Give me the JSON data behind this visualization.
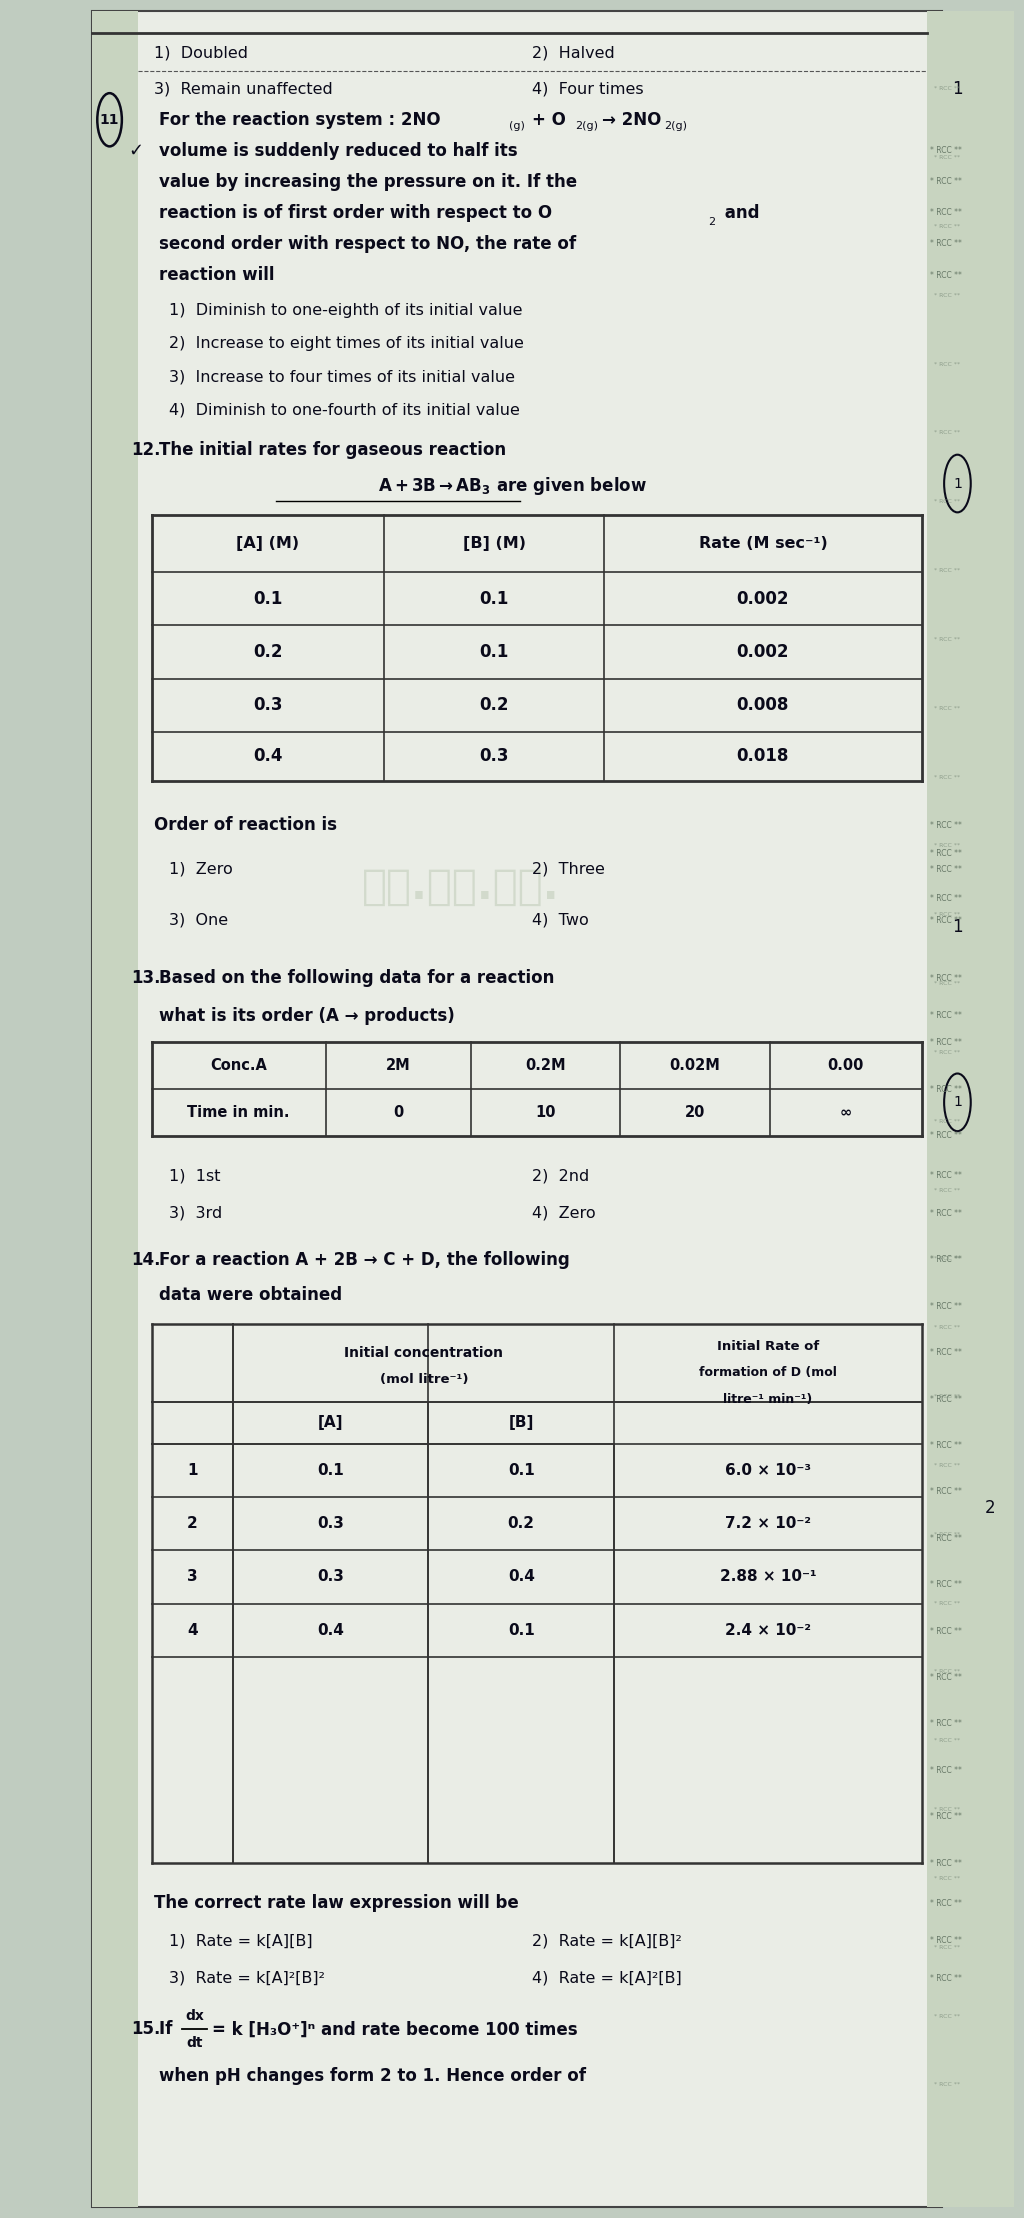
{
  "bg_color": "#d4ddd4",
  "text_color": "#1a1a2e",
  "page_bg": "#e8ede8",
  "title_color": "#000000",
  "q12_order_text": "Order of reaction is",
  "q12_options": [
    [
      "1)  Zero",
      "2)  Three"
    ],
    [
      "3)  One",
      "4)  Two"
    ]
  ],
  "q13_options": [
    [
      "1)  1st",
      "2)  2nd"
    ],
    [
      "3)  3rd",
      "4)  Zero"
    ]
  ],
  "table12_headers": [
    "[A] (M)",
    "[B] (M)",
    "Rate (M sec⁻¹)"
  ],
  "table12_data": [
    [
      "0.1",
      "0.1",
      "0.002"
    ],
    [
      "0.2",
      "0.1",
      "0.002"
    ],
    [
      "0.3",
      "0.2",
      "0.008"
    ],
    [
      "0.4",
      "0.3",
      "0.018"
    ]
  ],
  "table13_headers": [
    "Conc.A",
    "2M",
    "0.2M",
    "0.02M",
    "0.00"
  ],
  "table13_row": [
    "Time in min.",
    "0",
    "10",
    "20",
    "∞"
  ],
  "table14_data": [
    [
      "1",
      "0.1",
      "0.1",
      "6.0 × 10⁻³"
    ],
    [
      "2",
      "0.3",
      "0.2",
      "7.2 × 10⁻²"
    ],
    [
      "3",
      "0.3",
      "0.4",
      "2.88 × 10⁻¹"
    ],
    [
      "4",
      "0.4",
      "0.1",
      "2.4 × 10⁻²"
    ]
  ],
  "options_top1_left": "1)  Doubled",
  "options_top1_right": "2)  Halved",
  "options_top2_left": "3)  Remain unaffected",
  "options_top2_right": "4)  Four times",
  "q11_text1": "For the reaction system : 2NO",
  "q11_text2": "+ O",
  "q11_text3": "→ 2NO",
  "q11_body": [
    "volume is suddenly reduced to half its",
    "value by increasing the pressure on it. If the",
    "reaction is of first order with respect to O",
    "second order with respect to NO, the rate of",
    "reaction will"
  ],
  "q11_options": [
    "1)  Diminish to one-eighth of its initial value",
    "2)  Increase to eight times of its initial value",
    "3)  Increase to four times of its initial value",
    "4)  Diminish to one-fourth of its initial value"
  ],
  "q12_text": "The initial rates for gaseous reaction",
  "q12_reaction": "A + 3B → AB₃ are given below",
  "q13_text1": "Based on the following data for a reaction",
  "q13_text2": "what is its order (A → products)",
  "q14_text1": "For a reaction A + 2B → C + D, the following",
  "q14_text2": "data were obtained",
  "q14_rate_text": "The correct rate law expression will be",
  "q14_options": [
    [
      "1)  Rate = k[A][B]",
      "2)  Rate = k[A][B]²"
    ],
    [
      "3)  Rate = k[A]²[B]²",
      "4)  Rate = k[A]²[B]"
    ]
  ],
  "q15_text1": "= k [H₃O⁺]ⁿ and rate become 100 times",
  "q15_text2": "when pH changes form 2 to 1. Hence order of"
}
